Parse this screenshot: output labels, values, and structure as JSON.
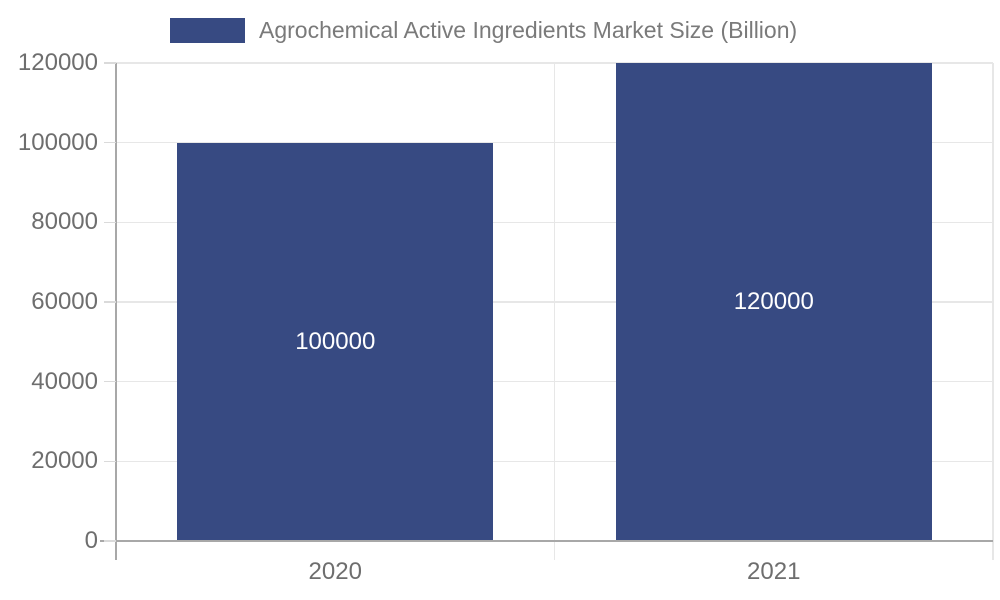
{
  "chart_data": {
    "type": "bar",
    "categories": [
      "2020",
      "2021"
    ],
    "series": [
      {
        "name": "Agrochemical Active Ingredients Market Size (Billion)",
        "values": [
          100000,
          120000
        ]
      }
    ],
    "value_labels": [
      "100000",
      "120000"
    ],
    "xlabel": "",
    "ylabel": "",
    "ylim": [
      0,
      120000
    ],
    "yticks": [
      0,
      20000,
      40000,
      60000,
      80000,
      100000,
      120000
    ],
    "grid": true,
    "legend_position": "top",
    "value_labels_inside_bars": true,
    "colors": {
      "bar": "#374A82",
      "grid": "#e7e7e7",
      "axis": "#a8a8a8",
      "tick": "#dadada",
      "tick_text": "#6e6e6e",
      "title_text": "#7a7a7a",
      "value_text": "#ffffff",
      "background": "#ffffff"
    }
  }
}
